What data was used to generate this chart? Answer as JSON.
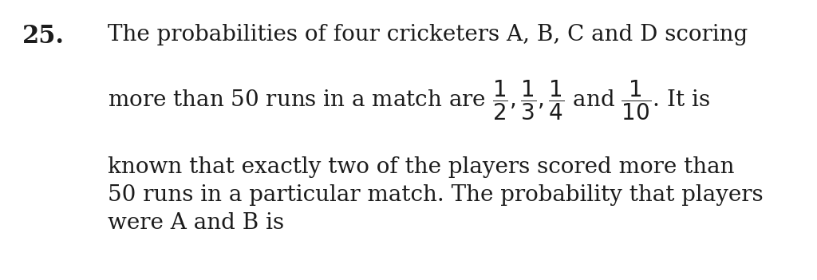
{
  "background_color": "#ffffff",
  "fig_width": 10.24,
  "fig_height": 3.51,
  "dpi": 100,
  "number": "25.",
  "number_fontsize": 22,
  "number_fontweight": "bold",
  "line1_text": "The probabilities of four cricketers A, B, C and D scoring",
  "line2_math": "more than 50 runs in a match are $\\dfrac{1}{2}, \\dfrac{1}{3}, \\dfrac{1}{4}$ and $\\dfrac{1}{10}$. It is",
  "line3_text": "known that exactly two of the players scored more than",
  "line4_text": "50 runs in a particular match. The probability that players",
  "line5_text": "were A and B is",
  "main_fontsize": 20,
  "text_color": "#1c1c1c"
}
